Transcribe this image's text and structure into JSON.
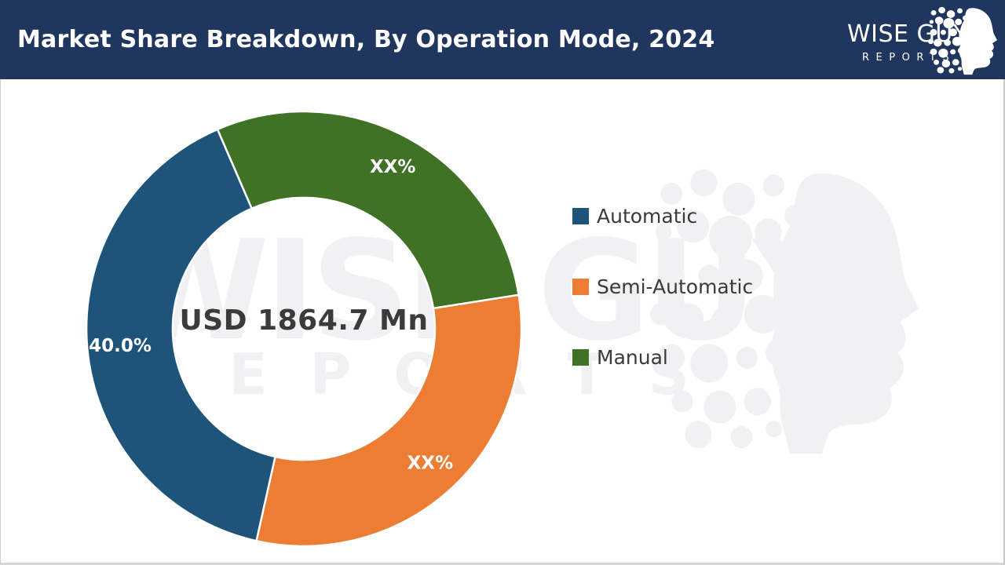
{
  "header": {
    "title": "Market Share Breakdown, By Operation Mode, 2024",
    "logo": {
      "line1": "WISE GUY",
      "line2": "REPORTS"
    }
  },
  "watermark": {
    "line1": "WISE GUY",
    "line2": "REPORTS"
  },
  "chart_data": {
    "type": "pie",
    "subtype": "donut",
    "title": "Market Share Breakdown, By Operation Mode, 2024",
    "center_label": "USD 1864.7 Mn",
    "start_angle_deg": 113.4,
    "direction": "counterclockwise",
    "inner_radius_ratio": 0.6,
    "legend_position": "right",
    "categories": [
      "Automatic",
      "Semi-Automatic",
      "Manual"
    ],
    "values": [
      40.0,
      31.0,
      29.0
    ],
    "segments": [
      {
        "name": "Automatic",
        "value_pct": 40.0,
        "display_label": "40.0%",
        "color": "#1F547A",
        "label_color": "#ffffff"
      },
      {
        "name": "Semi-Automatic",
        "value_pct": 31.0,
        "display_label": "XX%",
        "color": "#EC7D33",
        "label_color": "#ffffff"
      },
      {
        "name": "Manual",
        "value_pct": 29.0,
        "display_label": "XX%",
        "color": "#407226",
        "label_color": "#ffffff"
      }
    ]
  },
  "colors": {
    "header_bg": "#20365f",
    "page_bg": "#ffffff",
    "watermark": "#f1f1f3",
    "center_text": "#3b3b3b",
    "legend_text": "#3a3a3a",
    "border": "#c9c9c9",
    "wedge_gap": "#ffffff"
  }
}
